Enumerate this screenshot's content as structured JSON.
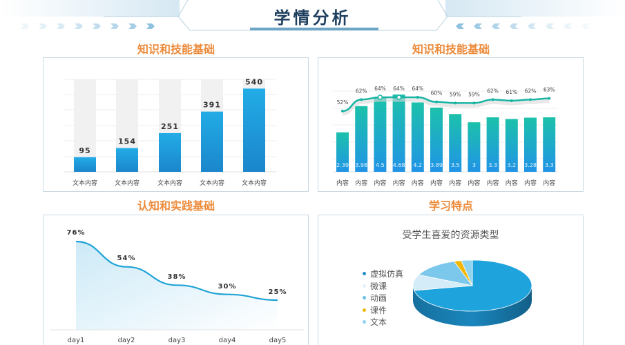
{
  "header": {
    "title": "学情分析"
  },
  "colors": {
    "title_orange": "#ec8a3a",
    "bar_blue": "#1e96d8",
    "bar_teal": "#1bbfae",
    "line_teal": "#17b3a3",
    "area_line": "#1fa3d6",
    "pie_main": "#1ea3dc"
  },
  "sections": [
    {
      "title": "知识和技能基础"
    },
    {
      "title": "知识和技能基础"
    },
    {
      "title": "认知和实践基础"
    },
    {
      "title": "学习特点"
    }
  ],
  "chart_data": [
    {
      "type": "bar",
      "title": "知识和技能基础",
      "categories": [
        "文本内容",
        "文本内容",
        "文本内容",
        "文本内容",
        "文本内容"
      ],
      "values": [
        95,
        154,
        251,
        391,
        540
      ],
      "labels": [
        "95",
        "154",
        "251",
        "391",
        "540"
      ],
      "background_max": 600,
      "grid": true
    },
    {
      "type": "bar+line",
      "title": "知识和技能基础",
      "categories": [
        "内容",
        "内容",
        "内容",
        "内容",
        "内容",
        "内容",
        "内容",
        "内容",
        "内容",
        "内容",
        "内容",
        "内容"
      ],
      "series": [
        {
          "name": "bar",
          "values": [
            2.39,
            3.98,
            4.5,
            4.68,
            4.2,
            3.89,
            3.5,
            3,
            3.3,
            3.2,
            3.28,
            3.3
          ],
          "labels": [
            "2.39",
            "3.98",
            "4.5",
            "4.68",
            "4.2",
            "3.89",
            "3.5",
            "3",
            "3.3",
            "3.2",
            "3.28",
            "3.3"
          ]
        },
        {
          "name": "line",
          "values": [
            52,
            62,
            64,
            64,
            64,
            60,
            59,
            59,
            62,
            61,
            62,
            63
          ],
          "labels": [
            "52%",
            "62%",
            "64%",
            "64%",
            "64%",
            "60%",
            "59%",
            "59%",
            "62%",
            "61%",
            "62%",
            "63%"
          ]
        }
      ],
      "grid": true
    },
    {
      "type": "area",
      "title": "认知和实践基础",
      "x": [
        "day1",
        "day2",
        "day3",
        "day4",
        "day5"
      ],
      "values": [
        76,
        54,
        38,
        30,
        25
      ],
      "labels": [
        "76%",
        "54%",
        "38%",
        "30%",
        "25%"
      ],
      "ylim": [
        0,
        80
      ]
    },
    {
      "type": "pie",
      "title": "受学生喜爱的资源类型",
      "categories": [
        "虚拟仿真",
        "微课",
        "动画",
        "课件",
        "文本"
      ],
      "values": [
        72,
        10,
        13,
        2,
        3
      ],
      "colors": [
        "#1ea3dc",
        "#d4ecf8",
        "#7cc8ec",
        "#f2b705",
        "#8fd3ee"
      ],
      "legend_position": "left"
    }
  ],
  "pie": {
    "title": "受学生喜爱的资源类型",
    "legend": [
      {
        "label": "虚拟仿真",
        "color": "#1e8fc8"
      },
      {
        "label": "微课",
        "color": "#e2f1f9"
      },
      {
        "label": "动画",
        "color": "#6bbfe6"
      },
      {
        "label": "课件",
        "color": "#f2b705"
      },
      {
        "label": "文本",
        "color": "#8fd3ee"
      }
    ]
  }
}
